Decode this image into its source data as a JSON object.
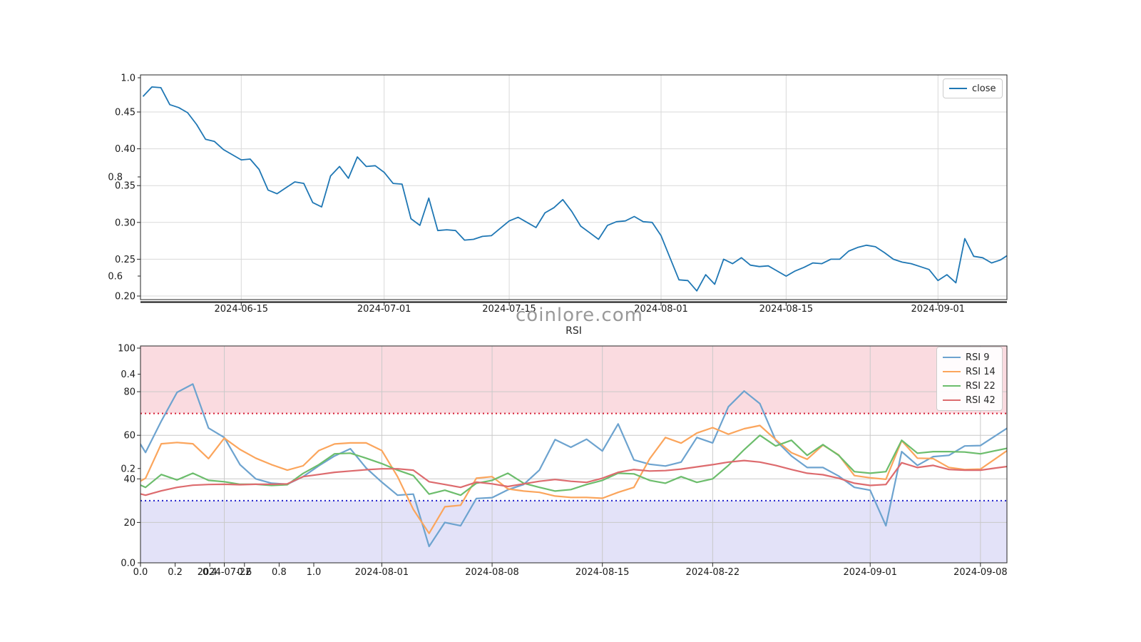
{
  "watermark": "coinlore.com",
  "page_background": "#ffffff",
  "chart_data": [
    {
      "type": "line",
      "name": "price-chart",
      "title": "",
      "start_date": "2024-06-04",
      "end_date": "2024-09-09",
      "grid": true,
      "ylim": [
        0.195,
        0.5
      ],
      "legend_position": "upper right",
      "x_ticks": [
        {
          "label": "2024-06-15",
          "day": 11
        },
        {
          "label": "2024-07-01",
          "day": 27
        },
        {
          "label": "2024-07-15",
          "day": 41
        },
        {
          "label": "2024-08-01",
          "day": 58
        },
        {
          "label": "2024-08-15",
          "day": 72
        },
        {
          "label": "2024-09-01",
          "day": 89
        }
      ],
      "y_ticks": [
        {
          "label": "0.45",
          "value": 0.45
        },
        {
          "label": "0.40",
          "value": 0.4
        },
        {
          "label": "0.35",
          "value": 0.35
        },
        {
          "label": "0.30",
          "value": 0.3
        },
        {
          "label": "0.25",
          "value": 0.25
        },
        {
          "label": "0.20",
          "value": 0.2
        }
      ],
      "y_ticks_secondary": [
        {
          "label": "1.0",
          "value": 1.0
        },
        {
          "label": "0.8",
          "value": 0.8
        },
        {
          "label": "0.6",
          "value": 0.6
        }
      ],
      "series": [
        {
          "name": "close",
          "color": "#1f77b4",
          "values": [
            0.471,
            0.484,
            0.483,
            0.46,
            0.456,
            0.449,
            0.433,
            0.413,
            0.41,
            0.399,
            0.392,
            0.385,
            0.386,
            0.372,
            0.344,
            0.339,
            0.347,
            0.355,
            0.353,
            0.327,
            0.321,
            0.363,
            0.376,
            0.36,
            0.389,
            0.376,
            0.377,
            0.368,
            0.353,
            0.352,
            0.305,
            0.296,
            0.333,
            0.289,
            0.29,
            0.289,
            0.276,
            0.277,
            0.281,
            0.282,
            0.292,
            0.302,
            0.307,
            0.3,
            0.293,
            0.313,
            0.32,
            0.331,
            0.315,
            0.295,
            0.286,
            0.277,
            0.296,
            0.301,
            0.302,
            0.308,
            0.301,
            0.3,
            0.282,
            0.252,
            0.222,
            0.221,
            0.207,
            0.229,
            0.216,
            0.25,
            0.244,
            0.252,
            0.242,
            0.24,
            0.241,
            0.234,
            0.227,
            0.234,
            0.239,
            0.245,
            0.244,
            0.25,
            0.25,
            0.261,
            0.266,
            0.269,
            0.267,
            0.259,
            0.25,
            0.246,
            0.244,
            0.24,
            0.236,
            0.221,
            0.229,
            0.218,
            0.278,
            0.254,
            0.252,
            0.245,
            0.249,
            0.257
          ]
        }
      ]
    },
    {
      "type": "line",
      "name": "rsi-chart",
      "title": "RSI",
      "start_date": "2024-07-16",
      "end_date": "2024-09-09",
      "grid": true,
      "ylim": [
        0,
        100
      ],
      "legend_position": "upper right",
      "overbought_level": 70,
      "oversold_level": 30,
      "overbought_line_color": "#d62035",
      "oversold_line_color": "#2121cc",
      "overbought_band_color": "#fadbe0",
      "oversold_band_color": "#e3e2f8",
      "x_ticks": [
        {
          "label": "2024-07-22",
          "day": 6
        },
        {
          "label": "2024-08-01",
          "day": 16
        },
        {
          "label": "2024-08-08",
          "day": 23
        },
        {
          "label": "2024-08-15",
          "day": 30
        },
        {
          "label": "2024-08-22",
          "day": 37
        },
        {
          "label": "2024-09-01",
          "day": 47
        },
        {
          "label": "2024-09-08",
          "day": 54
        }
      ],
      "x_ticks_secondary": [
        {
          "label": "0.0",
          "value": 0.0
        },
        {
          "label": "0.2",
          "value": 0.2
        },
        {
          "label": "0.4",
          "value": 0.4
        },
        {
          "label": "0.6",
          "value": 0.6
        },
        {
          "label": "0.8",
          "value": 0.8
        },
        {
          "label": "1.0",
          "value": 1.0
        }
      ],
      "y_ticks": [
        {
          "label": "100",
          "value": 100
        },
        {
          "label": "80",
          "value": 80
        },
        {
          "label": "60",
          "value": 60
        },
        {
          "label": "40",
          "value": 40
        },
        {
          "label": "20",
          "value": 20
        }
      ],
      "y_ticks_secondary": [
        {
          "label": "0.4",
          "value": 0.4
        },
        {
          "label": "0.2",
          "value": 0.2
        },
        {
          "label": "0.0",
          "value": 0.0
        }
      ],
      "series": [
        {
          "name": "RSI 9",
          "color": "#6da3cf",
          "values": [
            63.9,
            52.1,
            66.5,
            79.7,
            83.5,
            63.3,
            59,
            46.5,
            40,
            38,
            37.5,
            41,
            46,
            50.5,
            53.8,
            45,
            38.5,
            32.5,
            33,
            9,
            20,
            18.5,
            31,
            31.4,
            35,
            37.4,
            44,
            58,
            54.5,
            58.2,
            52.8,
            65.2,
            48.7,
            46.7,
            45.9,
            47.7,
            59,
            56.5,
            73.1,
            80.3,
            74.5,
            57.7,
            50.5,
            45.2,
            45.2,
            41.3,
            36.1,
            34.8,
            18.5,
            52.5,
            46.2,
            50.2,
            50.8,
            55.1,
            55.3,
            60
          ]
        },
        {
          "name": "RSI 14",
          "color": "#fba55c",
          "values": [
            36.2,
            40.3,
            56.1,
            56.7,
            56.1,
            49.3,
            58.7,
            53.5,
            49.5,
            46.5,
            44,
            46,
            53,
            56,
            56.5,
            56.5,
            53,
            41,
            26,
            15,
            27.2,
            27.9,
            40.3,
            41,
            35.4,
            34.4,
            33.8,
            32.1,
            31.5,
            31.5,
            31.1,
            33.8,
            36.1,
            49.2,
            59,
            56.4,
            61,
            63.5,
            60.5,
            63,
            64.5,
            58,
            52,
            49,
            55.5,
            51,
            41.5,
            40.5,
            39.8,
            57.5,
            49.5,
            49.3,
            45.2,
            44.3,
            44.5,
            49.5
          ]
        },
        {
          "name": "RSI 22",
          "color": "#6cbd6c",
          "values": [
            39.3,
            36.1,
            42,
            39.5,
            42.6,
            39.3,
            38.7,
            37.5,
            37.5,
            37,
            37.3,
            42.5,
            46.5,
            51.5,
            51.8,
            49.5,
            47,
            44,
            41.5,
            33,
            34.8,
            32.5,
            38,
            39.3,
            42.6,
            38,
            36.1,
            34.4,
            35.1,
            37.4,
            39.3,
            42.6,
            42.3,
            39.3,
            38,
            41,
            38.4,
            40,
            46.2,
            53.4,
            60,
            55.1,
            57.7,
            50.8,
            55.7,
            50.8,
            43.3,
            42.6,
            43.3,
            57.7,
            51.8,
            52.5,
            52.5,
            52.3,
            51.5,
            53
          ]
        },
        {
          "name": "RSI 42",
          "color": "#dd6b6e",
          "values": [
            34.4,
            32.5,
            34.5,
            36.1,
            37.1,
            37.4,
            37.5,
            37.3,
            37.5,
            37.5,
            37.7,
            41,
            42,
            43,
            43.6,
            44.2,
            44.6,
            44.6,
            44,
            38.7,
            37.4,
            36.1,
            38.5,
            37.7,
            36.5,
            37.7,
            38.9,
            39.7,
            38.9,
            38.4,
            40.3,
            43,
            44.3,
            43.6,
            43.8,
            44.5,
            45.5,
            46.5,
            47.7,
            48.4,
            47.7,
            46.2,
            44.3,
            42.6,
            41.9,
            40.3,
            38,
            37,
            37.4,
            47.4,
            45.2,
            46.2,
            44.3,
            44,
            44,
            45
          ]
        }
      ]
    }
  ]
}
